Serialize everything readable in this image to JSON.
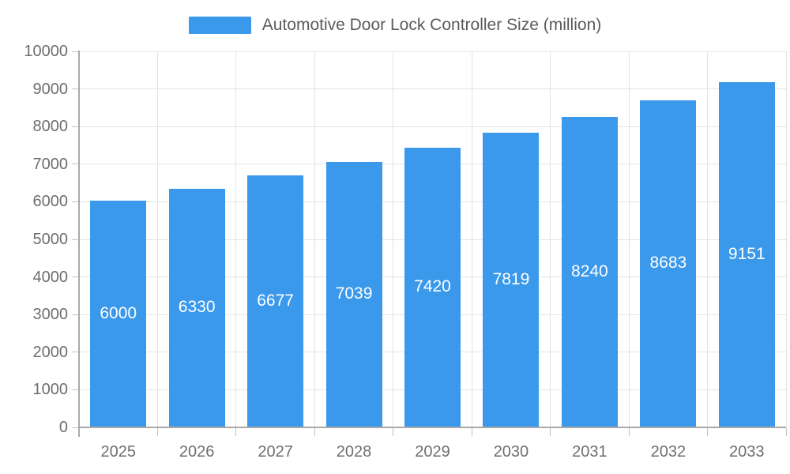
{
  "legend": {
    "label": "Automotive Door Lock Controller Size (million)"
  },
  "chart_data": {
    "type": "bar",
    "title": "Automotive Door Lock Controller Size (million)",
    "categories": [
      "2025",
      "2026",
      "2027",
      "2028",
      "2029",
      "2030",
      "2031",
      "2032",
      "2033"
    ],
    "values": [
      6000,
      6330,
      6677,
      7039,
      7420,
      7819,
      8240,
      8683,
      9151
    ],
    "series": [
      {
        "name": "Automotive Door Lock Controller Size (million)",
        "values": [
          6000,
          6330,
          6677,
          7039,
          7420,
          7819,
          8240,
          8683,
          9151
        ]
      }
    ],
    "xlabel": "",
    "ylabel": "",
    "ylim": [
      0,
      10000
    ],
    "y_ticks": [
      0,
      1000,
      2000,
      3000,
      4000,
      5000,
      6000,
      7000,
      8000,
      9000,
      10000
    ],
    "bar_labels_position": "inside-center",
    "grid": true,
    "legend_position": "top",
    "colors": {
      "bar": "#3B99EC",
      "bar_label": "#FFFFFF",
      "axis_text": "#6E6E6E",
      "legend_text": "#5A5A5A",
      "grid_line": "#E3E3E3",
      "axis_line": "#A9A9A9",
      "tick": "#C2C2C2",
      "background": "#FFFFFF"
    }
  }
}
